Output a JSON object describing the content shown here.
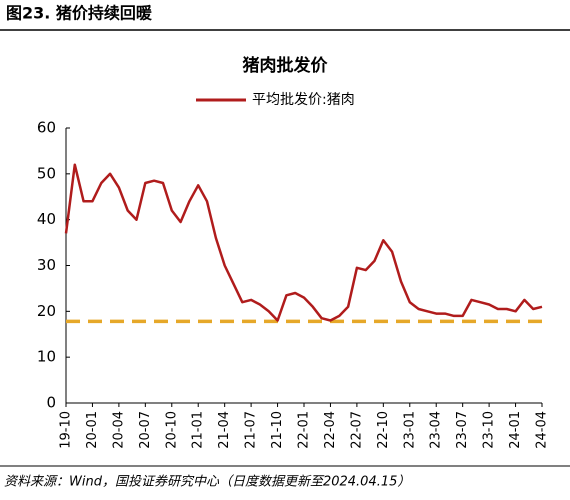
{
  "header": {
    "title": "图23. 猪价持续回暖"
  },
  "chart_data": {
    "type": "line",
    "title": "猪肉批发价",
    "categories": [
      "19-10",
      null,
      null,
      "20-01",
      null,
      null,
      "20-04",
      null,
      null,
      "20-07",
      null,
      null,
      "20-10",
      null,
      null,
      "21-01",
      null,
      null,
      "21-04",
      null,
      null,
      "21-07",
      null,
      null,
      "21-10",
      null,
      null,
      "22-01",
      null,
      null,
      "22-04",
      null,
      null,
      "22-07",
      null,
      null,
      "22-10",
      null,
      null,
      "23-01",
      null,
      null,
      "23-04",
      null,
      null,
      "23-07",
      null,
      null,
      "23-10",
      null,
      null,
      "24-01",
      null,
      null,
      "24-04"
    ],
    "series": [
      {
        "name": "平均批发价:猪肉",
        "color": "#b01c1c",
        "values": [
          37,
          52,
          44,
          44,
          48,
          50,
          47,
          42,
          40,
          48,
          48.5,
          48,
          42,
          39.5,
          44,
          47.5,
          44,
          36,
          30,
          26,
          22,
          22.5,
          21.5,
          20,
          18,
          23.5,
          24,
          23,
          21,
          18.5,
          18,
          19,
          21,
          29.5,
          29,
          31,
          35.5,
          33,
          26.5,
          22,
          20.5,
          20,
          19.5,
          19.5,
          19,
          19,
          22.5,
          22,
          21.5,
          20.5,
          20.5,
          20,
          22.5,
          20.5,
          21
        ]
      }
    ],
    "ylim": [
      0,
      60
    ],
    "yticks": [
      0,
      10,
      20,
      30,
      40,
      50,
      60
    ],
    "reference_line": {
      "value": 17.8,
      "color": "#e6a829"
    },
    "legend": "top"
  },
  "footer": {
    "source": "资料来源：Wind，国投证券研究中心（日度数据更新至2024.04.15）"
  }
}
